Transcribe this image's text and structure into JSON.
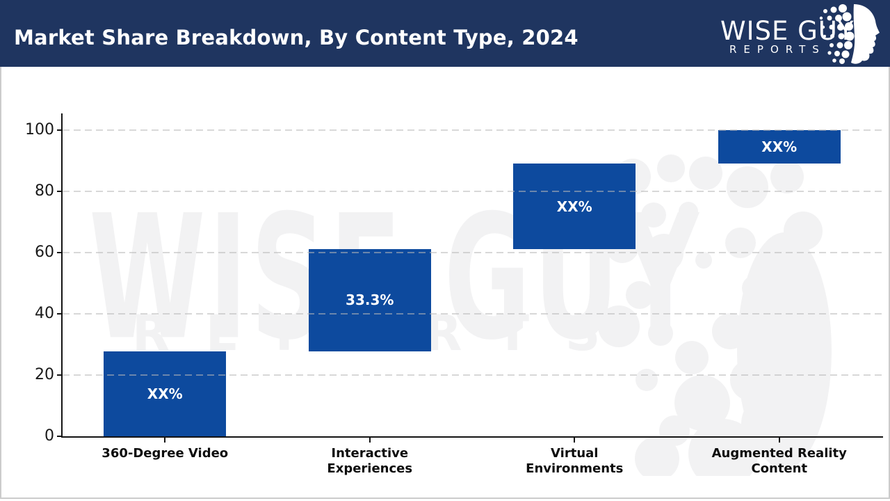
{
  "header": {
    "background": "#1f3560",
    "title": "Market Share Breakdown, By Content Type, 2024",
    "logo": {
      "wordmark": "WISE GUY",
      "subtext": "REPORTS"
    }
  },
  "watermark": {
    "wordmark": "WISE GUY",
    "subtext": "REPORTS"
  },
  "chart_data": {
    "type": "bar",
    "variant": "waterfall-stacked-breakdown",
    "title": "Market Share Breakdown, By Content Type, 2024",
    "xlabel": "",
    "ylabel": "",
    "ylim": [
      0,
      105
    ],
    "y_ticks": [
      0,
      20,
      40,
      60,
      80,
      100
    ],
    "grid": "horizontal-dashed",
    "legend": "none",
    "bar_color": "#0d4a9e",
    "bar_label_color": "#ffffff",
    "bars": [
      {
        "category": "360-Degree Video",
        "from": 0,
        "to": 27.8,
        "label": "XX%"
      },
      {
        "category": "Interactive\nExperiences",
        "from": 27.8,
        "to": 61.1,
        "label": "33.3%"
      },
      {
        "category": "Virtual\nEnvironments",
        "from": 61.1,
        "to": 89.1,
        "label": "XX%"
      },
      {
        "category": "Augmented Reality\nContent",
        "from": 89.1,
        "to": 100,
        "label": "XX%"
      }
    ]
  }
}
